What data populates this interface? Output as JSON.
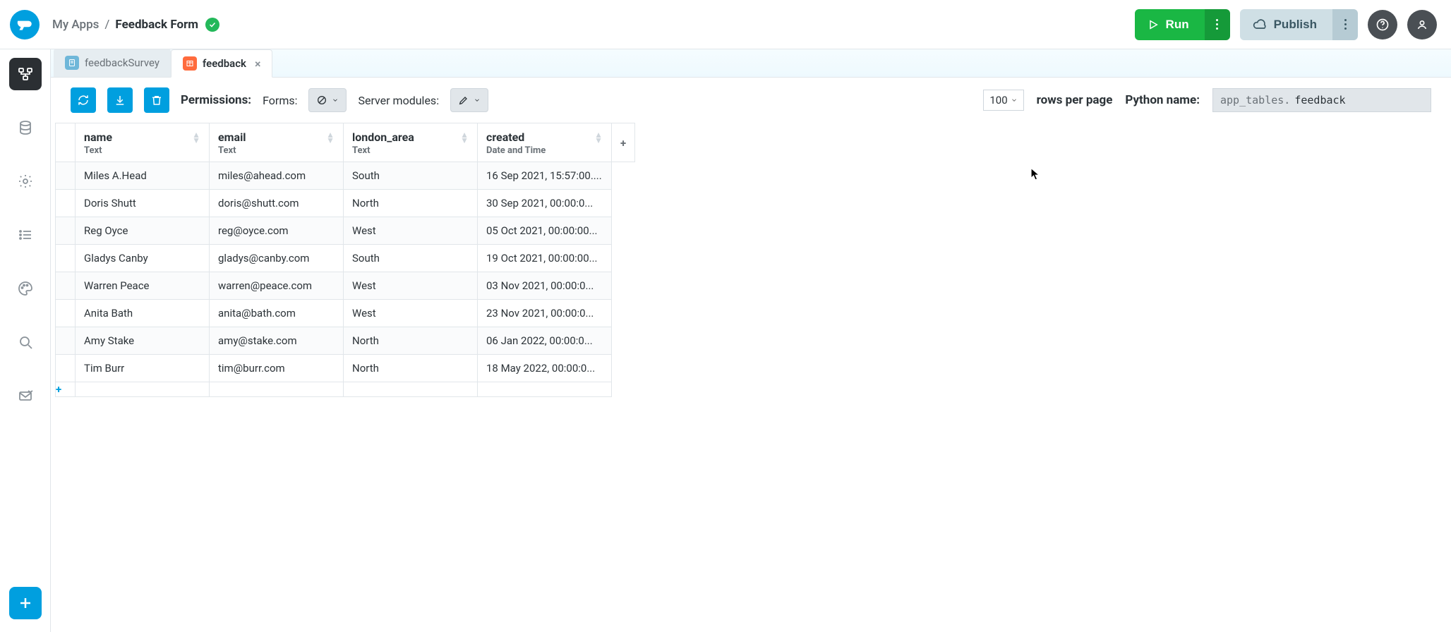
{
  "breadcrumbs": {
    "root": "My Apps",
    "name": "Feedback Form"
  },
  "header": {
    "run_label": "Run",
    "publish_label": "Publish"
  },
  "tabs": [
    {
      "label": "feedbackSurvey",
      "kind": "form",
      "active": false
    },
    {
      "label": "feedback",
      "kind": "table",
      "active": true
    }
  ],
  "toolbar": {
    "permissions_label": "Permissions:",
    "forms_label": "Forms:",
    "server_modules_label": "Server modules:",
    "rows_per_page_value": "100",
    "rows_per_page_label": "rows per page",
    "python_name_label": "Python name:",
    "python_name_prefix": "app_tables.",
    "python_name_value": "feedback"
  },
  "columns": [
    {
      "name": "name",
      "type": "Text"
    },
    {
      "name": "email",
      "type": "Text"
    },
    {
      "name": "london_area",
      "type": "Text"
    },
    {
      "name": "created",
      "type": "Date and Time"
    }
  ],
  "rows": [
    {
      "name": "Miles A.Head",
      "email": "miles@ahead.com",
      "london_area": "South",
      "created": "16 Sep 2021, 15:57:00...."
    },
    {
      "name": "Doris Shutt",
      "email": "doris@shutt.com",
      "london_area": "North",
      "created": "30 Sep 2021, 00:00:0..."
    },
    {
      "name": "Reg Oyce",
      "email": "reg@oyce.com",
      "london_area": "West",
      "created": "05 Oct 2021, 00:00:00..."
    },
    {
      "name": "Gladys Canby",
      "email": "gladys@canby.com",
      "london_area": "South",
      "created": "19 Oct 2021, 00:00:00..."
    },
    {
      "name": "Warren Peace",
      "email": "warren@peace.com",
      "london_area": "West",
      "created": "03 Nov 2021, 00:00:0..."
    },
    {
      "name": "Anita Bath",
      "email": "anita@bath.com",
      "london_area": "West",
      "created": "23 Nov 2021, 00:00:0..."
    },
    {
      "name": "Amy Stake",
      "email": "amy@stake.com",
      "london_area": "North",
      "created": "06 Jan 2022, 00:00:0..."
    },
    {
      "name": "Tim Burr",
      "email": "tim@burr.com",
      "london_area": "North",
      "created": "18 May 2022, 00:00:0..."
    }
  ]
}
